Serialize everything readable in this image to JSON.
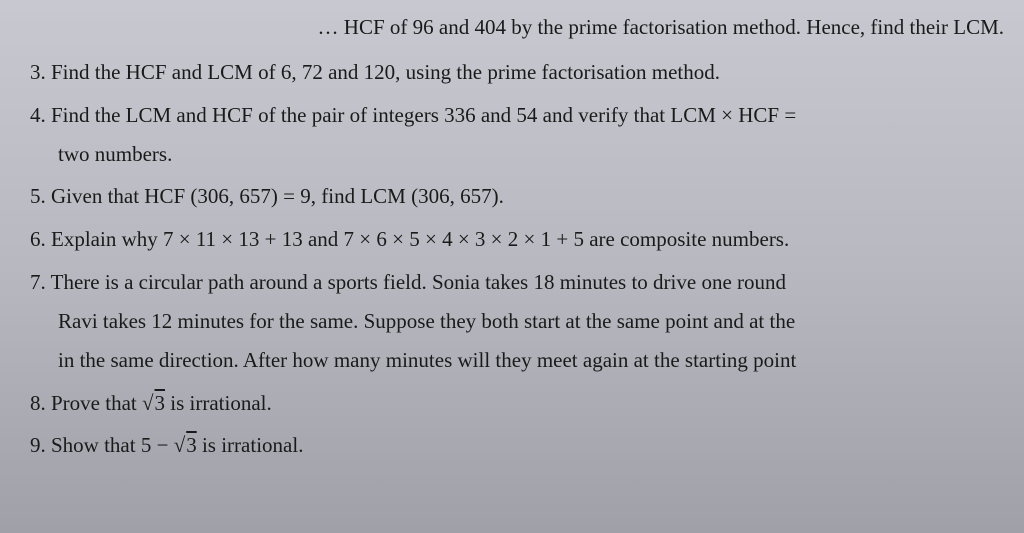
{
  "page": {
    "background_gradient": [
      "#c8c8d0",
      "#b8b8c0",
      "#a0a0a8"
    ],
    "text_color": "#1a1a1a",
    "font_family": "Georgia, Times New Roman, serif",
    "font_size_pt": 21,
    "line_height": 1.85
  },
  "partial_top": "… HCF of 96 and 404 by the prime factorisation method. Hence, find their LCM.",
  "questions": [
    {
      "num": "3.",
      "text": "Find the HCF and LCM of 6, 72 and 120, using the prime factorisation method."
    },
    {
      "num": "4.",
      "text": "Find the LCM and HCF of the pair of integers 336 and 54 and verify that LCM × HCF =",
      "cont": "two numbers."
    },
    {
      "num": "5.",
      "text": "Given that HCF (306, 657) = 9, find LCM (306, 657)."
    },
    {
      "num": "6.",
      "text": "Explain why 7 × 11 × 13 + 13 and 7 × 6 × 5 × 4 × 3 × 2 × 1 + 5 are composite numbers."
    },
    {
      "num": "7.",
      "text": "There is a circular path around a sports field. Sonia takes 18 minutes to drive one round",
      "cont": "Ravi takes 12 minutes for the same. Suppose they both start at the same point and at the",
      "cont2": "in the same direction. After how many minutes will they meet again at the starting point"
    },
    {
      "num": "8.",
      "prefix": "Prove that ",
      "sqrt_val": "3",
      "suffix": " is irrational."
    },
    {
      "num": "9.",
      "prefix": "Show that 5 − ",
      "sqrt_val": "3",
      "suffix": " is irrational."
    }
  ]
}
